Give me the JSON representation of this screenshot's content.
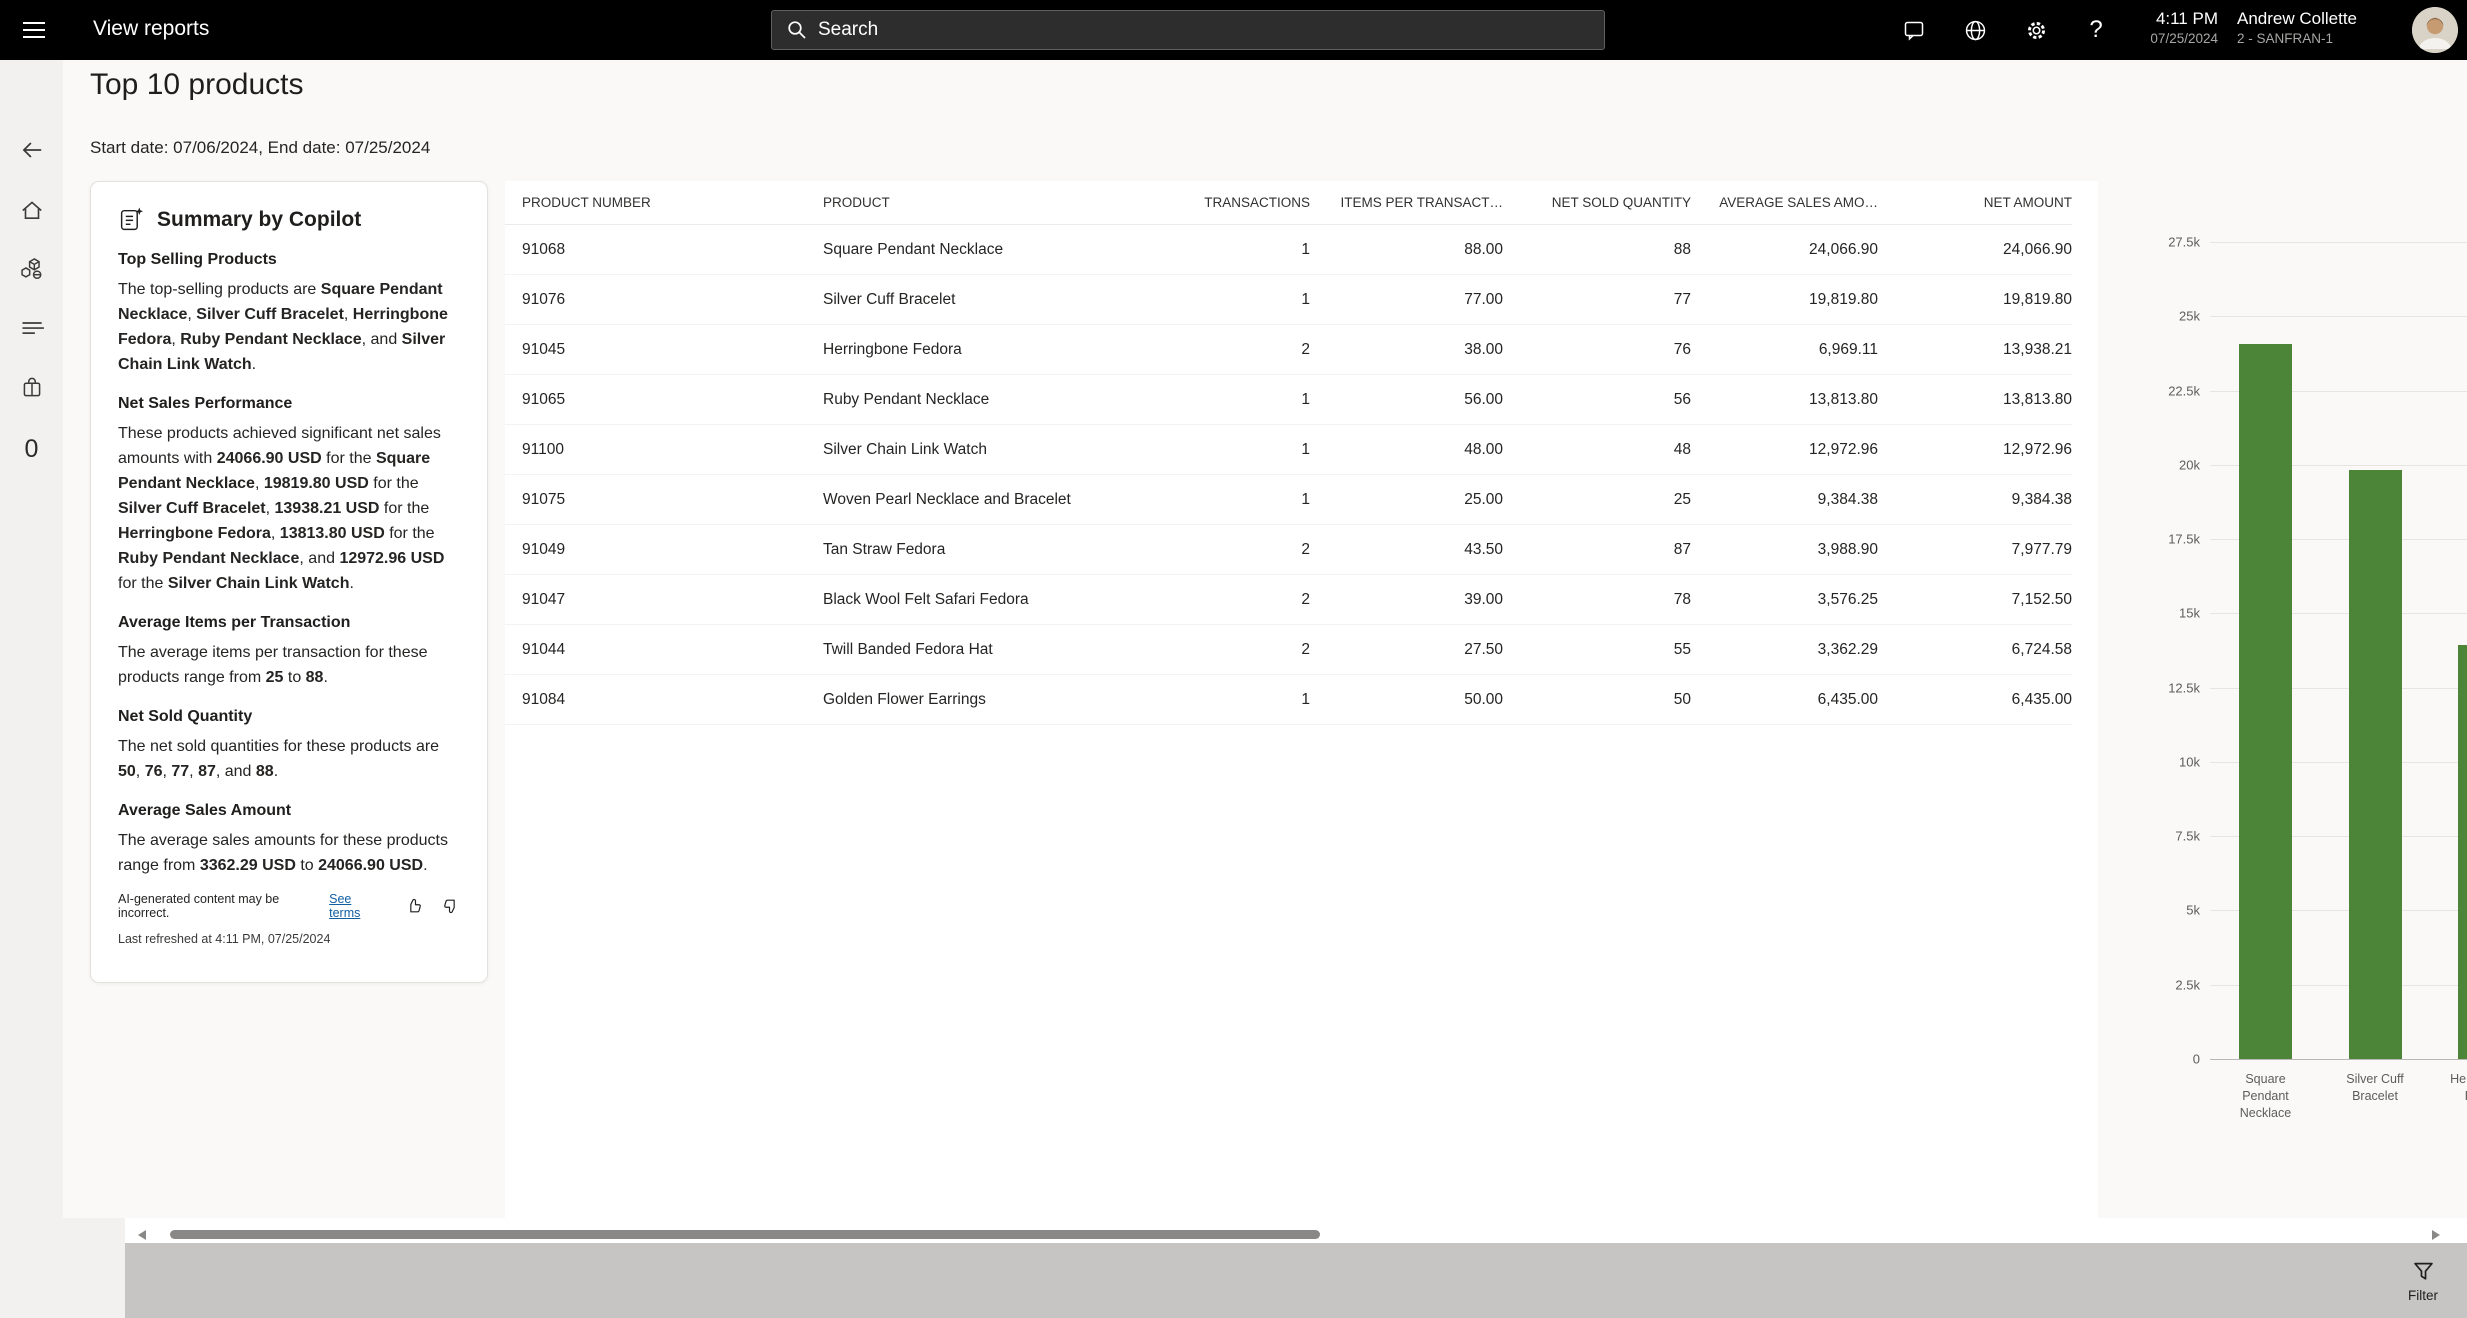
{
  "topbar": {
    "title": "View reports",
    "search_placeholder": "Search",
    "help_glyph": "?",
    "time": "4:11 PM",
    "date": "07/25/2024",
    "user_name": "Andrew Collette",
    "register": "2 - SANFRAN-1"
  },
  "sidebar": {
    "cart_count": "0"
  },
  "page": {
    "title": "Top 10 products",
    "date_range": "Start date: 07/06/2024, End date: 07/25/2024"
  },
  "copilot": {
    "title": "Summary by Copilot",
    "sections": [
      {
        "heading": "Top Selling Products",
        "body": [
          {
            "t": "The top-selling products are "
          },
          {
            "t": "Square Pendant Necklace",
            "b": 1
          },
          {
            "t": ", "
          },
          {
            "t": "Silver Cuff Bracelet",
            "b": 1
          },
          {
            "t": ", "
          },
          {
            "t": "Herringbone Fedora",
            "b": 1
          },
          {
            "t": ", "
          },
          {
            "t": "Ruby Pendant Necklace",
            "b": 1
          },
          {
            "t": ", and "
          },
          {
            "t": "Silver Chain Link Watch",
            "b": 1
          },
          {
            "t": "."
          }
        ]
      },
      {
        "heading": "Net Sales Performance",
        "body": [
          {
            "t": "These products achieved significant net sales amounts with "
          },
          {
            "t": "24066.90 USD",
            "b": 1
          },
          {
            "t": " for the "
          },
          {
            "t": "Square Pendant Necklace",
            "b": 1
          },
          {
            "t": ", "
          },
          {
            "t": "19819.80 USD",
            "b": 1
          },
          {
            "t": " for the "
          },
          {
            "t": "Silver Cuff Bracelet",
            "b": 1
          },
          {
            "t": ", "
          },
          {
            "t": "13938.21 USD",
            "b": 1
          },
          {
            "t": " for the "
          },
          {
            "t": "Herringbone Fedora",
            "b": 1
          },
          {
            "t": ", "
          },
          {
            "t": "13813.80 USD",
            "b": 1
          },
          {
            "t": " for the "
          },
          {
            "t": "Ruby Pendant Necklace",
            "b": 1
          },
          {
            "t": ", and "
          },
          {
            "t": "12972.96 USD",
            "b": 1
          },
          {
            "t": " for the "
          },
          {
            "t": "Silver Chain Link Watch",
            "b": 1
          },
          {
            "t": "."
          }
        ]
      },
      {
        "heading": "Average Items per Transaction",
        "body": [
          {
            "t": "The average items per transaction for these products range from "
          },
          {
            "t": "25",
            "b": 1
          },
          {
            "t": " to "
          },
          {
            "t": "88",
            "b": 1
          },
          {
            "t": "."
          }
        ]
      },
      {
        "heading": "Net Sold Quantity",
        "body": [
          {
            "t": "The net sold quantities for these products are "
          },
          {
            "t": "50",
            "b": 1
          },
          {
            "t": ", "
          },
          {
            "t": "76",
            "b": 1
          },
          {
            "t": ", "
          },
          {
            "t": "77",
            "b": 1
          },
          {
            "t": ", "
          },
          {
            "t": "87",
            "b": 1
          },
          {
            "t": ", and "
          },
          {
            "t": "88",
            "b": 1
          },
          {
            "t": "."
          }
        ]
      },
      {
        "heading": "Average Sales Amount",
        "body": [
          {
            "t": "The average sales amounts for these products range from "
          },
          {
            "t": "3362.29 USD",
            "b": 1
          },
          {
            "t": " to "
          },
          {
            "t": "24066.90 USD",
            "b": 1
          },
          {
            "t": "."
          }
        ]
      }
    ],
    "disclaimer": "AI-generated content may be incorrect.",
    "see_terms": "See terms",
    "last_refreshed": "Last refreshed at 4:11 PM, 07/25/2024"
  },
  "table": {
    "columns": [
      "PRODUCT NUMBER",
      "PRODUCT",
      "TRANSACTIONS",
      "ITEMS PER TRANSACT…",
      "NET SOLD QUANTITY",
      "AVERAGE SALES AMO…",
      "NET AMOUNT"
    ],
    "rows": [
      [
        "91068",
        "Square Pendant Necklace",
        "1",
        "88.00",
        "88",
        "24,066.90",
        "24,066.90"
      ],
      [
        "91076",
        "Silver Cuff Bracelet",
        "1",
        "77.00",
        "77",
        "19,819.80",
        "19,819.80"
      ],
      [
        "91045",
        "Herringbone Fedora",
        "2",
        "38.00",
        "76",
        "6,969.11",
        "13,938.21"
      ],
      [
        "91065",
        "Ruby Pendant Necklace",
        "1",
        "56.00",
        "56",
        "13,813.80",
        "13,813.80"
      ],
      [
        "91100",
        "Silver Chain Link Watch",
        "1",
        "48.00",
        "48",
        "12,972.96",
        "12,972.96"
      ],
      [
        "91075",
        "Woven Pearl Necklace and Bracelet",
        "1",
        "25.00",
        "25",
        "9,384.38",
        "9,384.38"
      ],
      [
        "91049",
        "Tan Straw Fedora",
        "2",
        "43.50",
        "87",
        "3,988.90",
        "7,977.79"
      ],
      [
        "91047",
        "Black Wool Felt Safari Fedora",
        "2",
        "39.00",
        "78",
        "3,576.25",
        "7,152.50"
      ],
      [
        "91044",
        "Twill Banded Fedora Hat",
        "2",
        "27.50",
        "55",
        "3,362.29",
        "6,724.58"
      ],
      [
        "91084",
        "Golden Flower Earrings",
        "1",
        "50.00",
        "50",
        "6,435.00",
        "6,435.00"
      ]
    ]
  },
  "chart_data": {
    "type": "bar",
    "title": "",
    "xlabel": "",
    "ylabel": "",
    "categories": [
      "Square Pendant Necklace",
      "Silver Cuff Bracelet",
      "Herringbone Fedora"
    ],
    "values": [
      24066.9,
      19819.8,
      13938.21
    ],
    "bar_color": "#4c8537",
    "ylim": [
      0,
      27500
    ],
    "yticks": [
      {
        "label": "27.5k",
        "value": 27500
      },
      {
        "label": "25k",
        "value": 25000
      },
      {
        "label": "22.5k",
        "value": 22500
      },
      {
        "label": "20k",
        "value": 20000
      },
      {
        "label": "17.5k",
        "value": 17500
      },
      {
        "label": "15k",
        "value": 15000
      },
      {
        "label": "12.5k",
        "value": 12500
      },
      {
        "label": "10k",
        "value": 10000
      },
      {
        "label": "7.5k",
        "value": 7500
      },
      {
        "label": "5k",
        "value": 5000
      },
      {
        "label": "2.5k",
        "value": 2500
      },
      {
        "label": "0",
        "value": 0
      }
    ],
    "legend": null,
    "grid": true
  },
  "bottombar": {
    "filter_label": "Filter"
  }
}
